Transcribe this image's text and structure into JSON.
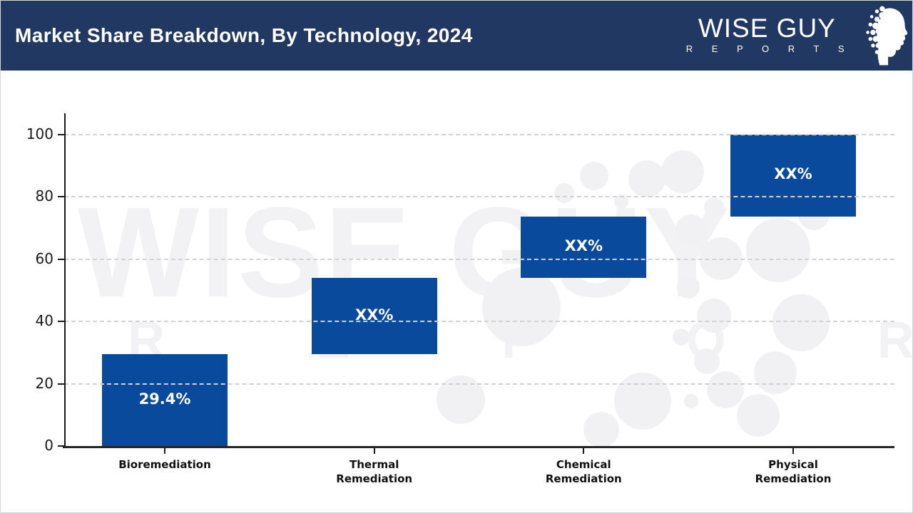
{
  "header": {
    "title": "Market Share Breakdown, By Technology, 2024",
    "background_color": "#213863",
    "logo": {
      "line1": "WISE GUY",
      "line2": "R E P O R T S",
      "head_icon": "dotted-head-profile"
    }
  },
  "watermark": {
    "line1": "WISE GUY",
    "line2": "R E P O R T S"
  },
  "chart_data": {
    "type": "bar",
    "subtype": "waterfall",
    "title": "Market Share Breakdown, By Technology, 2024",
    "categories": [
      "Bioremediation",
      "Thermal Remediation",
      "Chemical Remediation",
      "Physical Remediation"
    ],
    "segments": [
      {
        "category_lines": [
          "Bioremediation"
        ],
        "start": 0,
        "end": 29.4,
        "label": "29.4%"
      },
      {
        "category_lines": [
          "Thermal",
          "Remediation"
        ],
        "start": 29.4,
        "end": 53.9,
        "label": "XX%"
      },
      {
        "category_lines": [
          "Chemical",
          "Remediation"
        ],
        "start": 53.9,
        "end": 73.7,
        "label": "XX%"
      },
      {
        "category_lines": [
          "Physical",
          "Remediation"
        ],
        "start": 73.7,
        "end": 100,
        "label": "XX%"
      }
    ],
    "ylim": [
      0,
      100
    ],
    "yticks": [
      0,
      20,
      40,
      60,
      80,
      100
    ],
    "grid": "horizontal dashed",
    "legend": "none",
    "bar_color": "#0a4a9d",
    "bar_label_color": "#ffffff",
    "axis_color": "#262626"
  }
}
